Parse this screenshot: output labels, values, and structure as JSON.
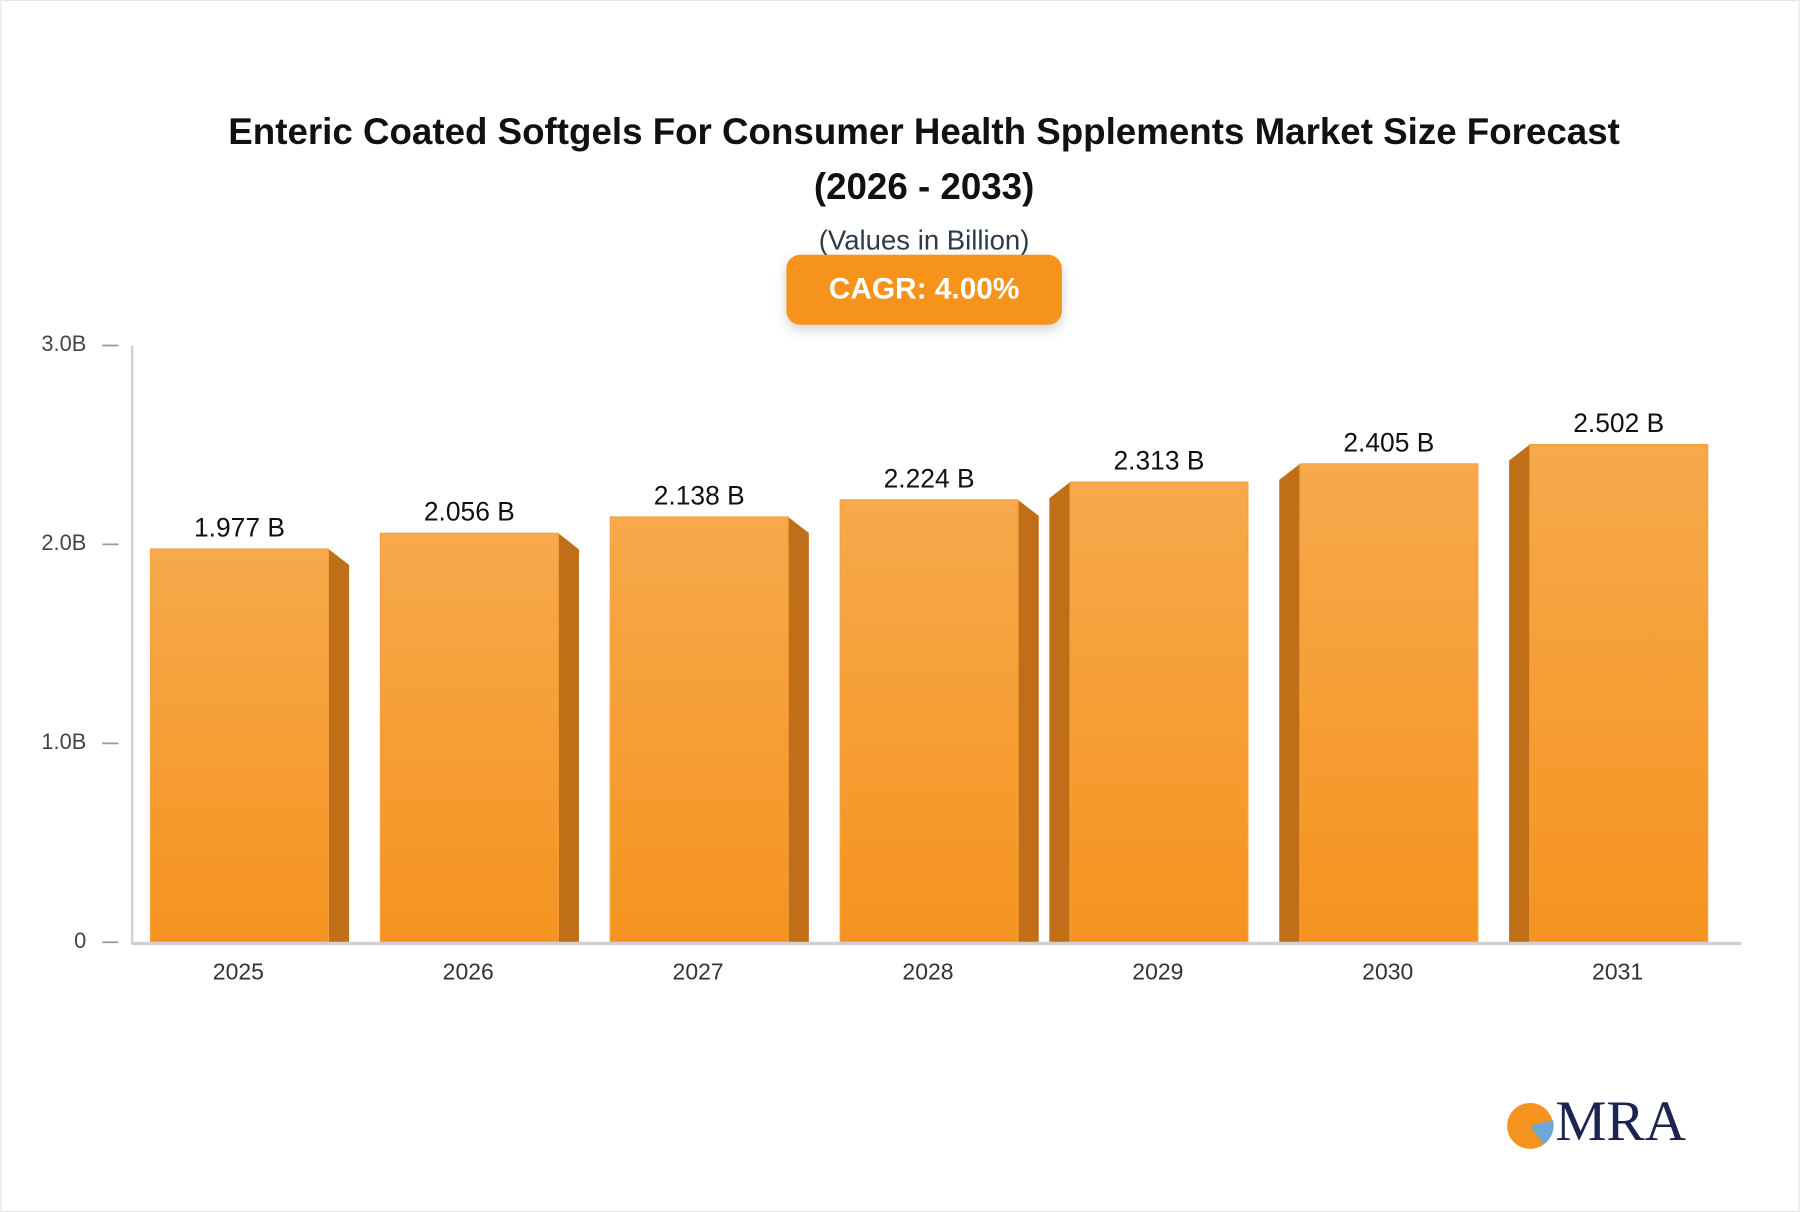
{
  "chart_data": {
    "type": "bar",
    "title": "Enteric Coated Softgels For Consumer Health Spplements Market Size Forecast",
    "title_line2": "(2026 - 2033)",
    "subtitle": "(Values in Billion)",
    "badge": "CAGR: 4.00%",
    "categories": [
      "2025",
      "2026",
      "2027",
      "2028",
      "2029",
      "2030",
      "2031"
    ],
    "values": [
      1.977,
      2.056,
      2.138,
      2.224,
      2.313,
      2.405,
      2.502
    ],
    "value_labels": [
      "1.977 B",
      "2.056 B",
      "2.138 B",
      "2.224 B",
      "2.313 B",
      "2.405 B",
      "2.502 B"
    ],
    "color": "#f5a03a",
    "ylim": [
      0,
      3
    ],
    "yticks": [
      0,
      {
        "value": 1,
        "label": "1.0B"
      },
      {
        "value": 2,
        "label": "2.0B"
      },
      {
        "value": 3,
        "label": "3.0B"
      }
    ],
    "grid": false
  },
  "logo": "MRA"
}
